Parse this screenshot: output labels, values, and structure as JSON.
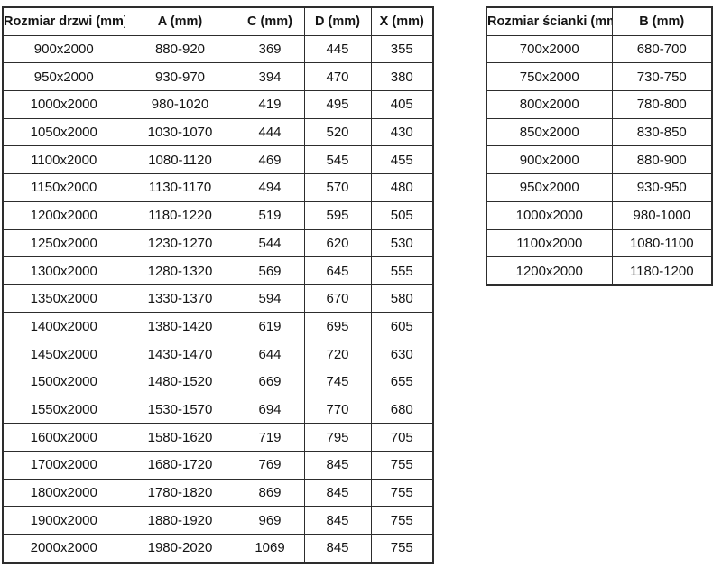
{
  "doors_table": {
    "headers": [
      "Rozmiar drzwi (mm)",
      "A (mm)",
      "C (mm)",
      "D (mm)",
      "X (mm)"
    ],
    "rows": [
      [
        "900x2000",
        "880-920",
        "369",
        "445",
        "355"
      ],
      [
        "950x2000",
        "930-970",
        "394",
        "470",
        "380"
      ],
      [
        "1000x2000",
        "980-1020",
        "419",
        "495",
        "405"
      ],
      [
        "1050x2000",
        "1030-1070",
        "444",
        "520",
        "430"
      ],
      [
        "1100x2000",
        "1080-1120",
        "469",
        "545",
        "455"
      ],
      [
        "1150x2000",
        "1130-1170",
        "494",
        "570",
        "480"
      ],
      [
        "1200x2000",
        "1180-1220",
        "519",
        "595",
        "505"
      ],
      [
        "1250x2000",
        "1230-1270",
        "544",
        "620",
        "530"
      ],
      [
        "1300x2000",
        "1280-1320",
        "569",
        "645",
        "555"
      ],
      [
        "1350x2000",
        "1330-1370",
        "594",
        "670",
        "580"
      ],
      [
        "1400x2000",
        "1380-1420",
        "619",
        "695",
        "605"
      ],
      [
        "1450x2000",
        "1430-1470",
        "644",
        "720",
        "630"
      ],
      [
        "1500x2000",
        "1480-1520",
        "669",
        "745",
        "655"
      ],
      [
        "1550x2000",
        "1530-1570",
        "694",
        "770",
        "680"
      ],
      [
        "1600x2000",
        "1580-1620",
        "719",
        "795",
        "705"
      ],
      [
        "1700x2000",
        "1680-1720",
        "769",
        "845",
        "755"
      ],
      [
        "1800x2000",
        "1780-1820",
        "869",
        "845",
        "755"
      ],
      [
        "1900x2000",
        "1880-1920",
        "969",
        "845",
        "755"
      ],
      [
        "2000x2000",
        "1980-2020",
        "1069",
        "845",
        "755"
      ]
    ]
  },
  "walls_table": {
    "headers": [
      "Rozmiar ścianki (mm)",
      "B (mm)"
    ],
    "rows": [
      [
        "700x2000",
        "680-700"
      ],
      [
        "750x2000",
        "730-750"
      ],
      [
        "800x2000",
        "780-800"
      ],
      [
        "850x2000",
        "830-850"
      ],
      [
        "900x2000",
        "880-900"
      ],
      [
        "950x2000",
        "930-950"
      ],
      [
        "1000x2000",
        "980-1000"
      ],
      [
        "1100x2000",
        "1080-1100"
      ],
      [
        "1200x2000",
        "1180-1200"
      ]
    ]
  },
  "colors": {
    "border": "#2d2d2d",
    "text": "#141414",
    "background": "#ffffff"
  }
}
